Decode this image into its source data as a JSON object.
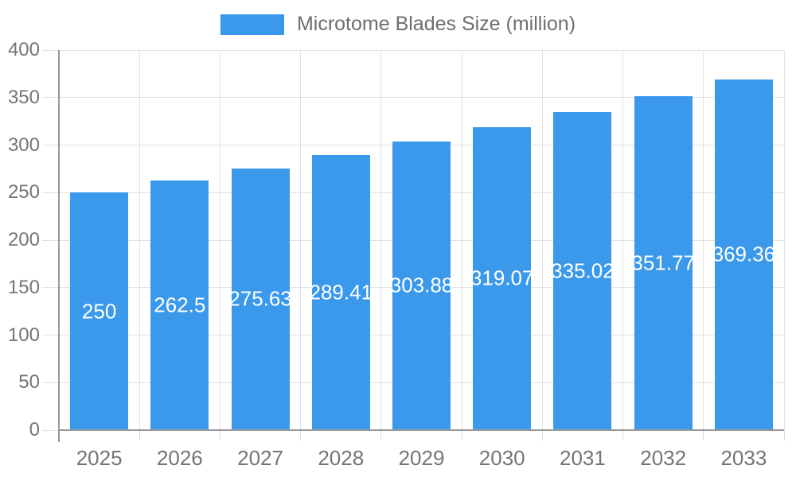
{
  "legend": {
    "label": "Microtome Blades Size (million)"
  },
  "chart_data": {
    "type": "bar",
    "title": "Microtome Blades Size (million)",
    "categories": [
      "2025",
      "2026",
      "2027",
      "2028",
      "2029",
      "2030",
      "2031",
      "2032",
      "2033"
    ],
    "values": [
      250,
      262.5,
      275.63,
      289.41,
      303.88,
      319.07,
      335.02,
      351.77,
      369.36
    ],
    "value_labels": [
      "250",
      "262.5",
      "275.63",
      "289.41",
      "303.88",
      "319.07",
      "335.02",
      "351.77",
      "369.36"
    ],
    "xlabel": "",
    "ylabel": "",
    "ylim": [
      0,
      400
    ],
    "y_ticks": [
      0,
      50,
      100,
      150,
      200,
      250,
      300,
      350,
      400
    ],
    "grid": true,
    "legend_position": "top-center",
    "bar_color": "#3b99ec",
    "value_label_color": "#ffffff",
    "axis_text_color": "#757575",
    "grid_color": "#e2e2e2",
    "axis_line_color": "#999999"
  }
}
